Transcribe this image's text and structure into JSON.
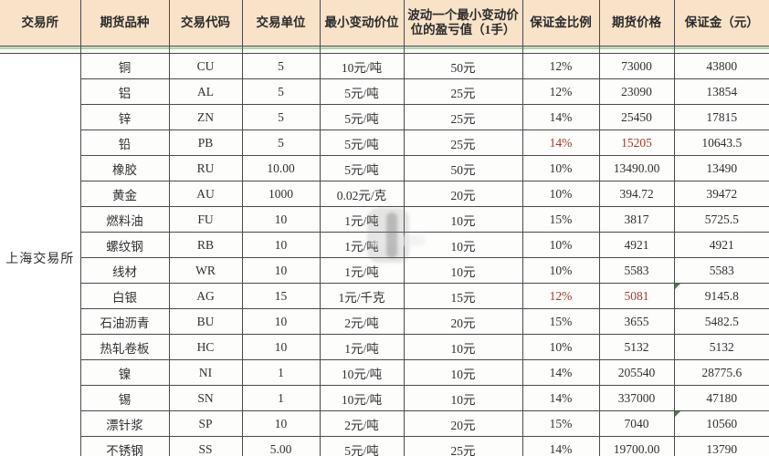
{
  "table": {
    "exchange_label": "上海交易所",
    "headers": [
      "交易所",
      "期货品种",
      "交易代码",
      "交易单位",
      "最小变动价位",
      "波动一个最小变动价位的盈亏值（1手）",
      "保证金比例",
      "期货价格",
      "保证金（元）"
    ],
    "rows": [
      {
        "variety": "铜",
        "code": "CU",
        "unit": "5",
        "tick": "10元/吨",
        "pnl": "50元",
        "margin_ratio": "12%",
        "price": "73000",
        "margin": "43800",
        "ratio_red": false,
        "price_red": false,
        "margin_note": false
      },
      {
        "variety": "铝",
        "code": "AL",
        "unit": "5",
        "tick": "5元/吨",
        "pnl": "25元",
        "margin_ratio": "12%",
        "price": "23090",
        "margin": "13854",
        "ratio_red": false,
        "price_red": false,
        "margin_note": false
      },
      {
        "variety": "锌",
        "code": "ZN",
        "unit": "5",
        "tick": "5元/吨",
        "pnl": "25元",
        "margin_ratio": "14%",
        "price": "25450",
        "margin": "17815",
        "ratio_red": false,
        "price_red": false,
        "margin_note": false
      },
      {
        "variety": "铅",
        "code": "PB",
        "unit": "5",
        "tick": "5元/吨",
        "pnl": "25元",
        "margin_ratio": "14%",
        "price": "15205",
        "margin": "10643.5",
        "ratio_red": true,
        "price_red": true,
        "margin_note": false
      },
      {
        "variety": "橡胶",
        "code": "RU",
        "unit": "10.00",
        "tick": "5元/吨",
        "pnl": "50元",
        "margin_ratio": "10%",
        "price": "13490.00",
        "margin": "13490",
        "ratio_red": false,
        "price_red": false,
        "margin_note": false
      },
      {
        "variety": "黄金",
        "code": "AU",
        "unit": "1000",
        "tick": "0.02元/克",
        "pnl": "20元",
        "margin_ratio": "10%",
        "price": "394.72",
        "margin": "39472",
        "ratio_red": false,
        "price_red": false,
        "margin_note": false
      },
      {
        "variety": "燃料油",
        "code": "FU",
        "unit": "10",
        "tick": "1元/吨",
        "pnl": "10元",
        "margin_ratio": "15%",
        "price": "3817",
        "margin": "5725.5",
        "ratio_red": false,
        "price_red": false,
        "margin_note": false
      },
      {
        "variety": "螺纹钢",
        "code": "RB",
        "unit": "10",
        "tick": "1元/吨",
        "pnl": "10元",
        "margin_ratio": "10%",
        "price": "4921",
        "margin": "4921",
        "ratio_red": false,
        "price_red": false,
        "margin_note": false
      },
      {
        "variety": "线材",
        "code": "WR",
        "unit": "10",
        "tick": "1元/吨",
        "pnl": "10元",
        "margin_ratio": "10%",
        "price": "5583",
        "margin": "5583",
        "ratio_red": false,
        "price_red": false,
        "margin_note": false
      },
      {
        "variety": "白银",
        "code": "AG",
        "unit": "15",
        "tick": "1元/千克",
        "pnl": "15元",
        "margin_ratio": "12%",
        "price": "5081",
        "margin": "9145.8",
        "ratio_red": true,
        "price_red": true,
        "margin_note": true
      },
      {
        "variety": "石油沥青",
        "code": "BU",
        "unit": "10",
        "tick": "2元/吨",
        "pnl": "20元",
        "margin_ratio": "15%",
        "price": "3655",
        "margin": "5482.5",
        "ratio_red": false,
        "price_red": false,
        "margin_note": false
      },
      {
        "variety": "热轧卷板",
        "code": "HC",
        "unit": "10",
        "tick": "1元/吨",
        "pnl": "10元",
        "margin_ratio": "10%",
        "price": "5132",
        "margin": "5132",
        "ratio_red": false,
        "price_red": false,
        "margin_note": false
      },
      {
        "variety": "镍",
        "code": "NI",
        "unit": "1",
        "tick": "10元/吨",
        "pnl": "10元",
        "margin_ratio": "14%",
        "price": "205540",
        "margin": "28775.6",
        "ratio_red": false,
        "price_red": false,
        "margin_note": false
      },
      {
        "variety": "锡",
        "code": "SN",
        "unit": "1",
        "tick": "10元/吨",
        "pnl": "10元",
        "margin_ratio": "14%",
        "price": "337000",
        "margin": "47180",
        "ratio_red": false,
        "price_red": false,
        "margin_note": false
      },
      {
        "variety": "漂针浆",
        "code": "SP",
        "unit": "10",
        "tick": "2元/吨",
        "pnl": "20元",
        "margin_ratio": "15%",
        "price": "7040",
        "margin": "10560",
        "ratio_red": false,
        "price_red": false,
        "margin_note": true
      },
      {
        "variety": "不锈钢",
        "code": "SS",
        "unit": "5.00",
        "tick": "5元/吨",
        "pnl": "25元",
        "margin_ratio": "14%",
        "price": "19700.00",
        "margin": "13790",
        "ratio_red": false,
        "price_red": false,
        "margin_note": false
      }
    ]
  },
  "colors": {
    "header_bg": "#f8e2c8",
    "border": "#4b4b4b",
    "highlight_text": "#a03a2b",
    "note_marker_green": "#4e7d44",
    "separator_green": "#b7cdb2"
  }
}
